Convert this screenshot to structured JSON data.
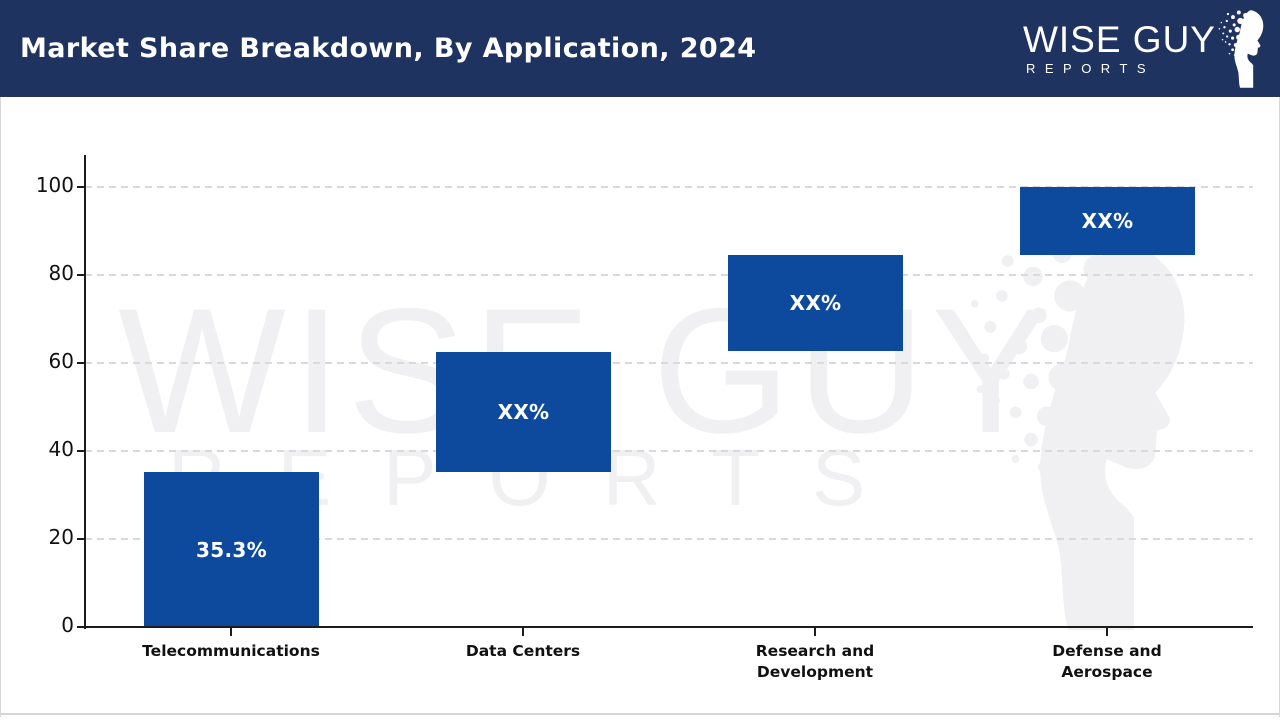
{
  "header": {
    "title": "Market Share Breakdown, By Application, 2024",
    "logo": {
      "line1": "WISE GUY",
      "line2": "REPORTS"
    }
  },
  "watermark": {
    "line1": "WISE GUY",
    "line2": "REPORTS"
  },
  "colors": {
    "header_bg": "#1f3360",
    "header_text": "#ffffff",
    "bar": "#0d4a9e",
    "bar_label": "#ffffff",
    "axis": "#1c1c1c",
    "tick_text": "#111111",
    "grid": "#d9d9d9",
    "watermark": "#f0f0f2",
    "page_border": "#d6d6d6"
  },
  "chart_data": {
    "type": "bar",
    "subtype": "waterfall",
    "title": "Market Share Breakdown, By Application, 2024",
    "categories": [
      "Telecommunications",
      "Data Centers",
      "Research and Development",
      "Defense and Aerospace"
    ],
    "category_label_lines": [
      [
        "Telecommunications"
      ],
      [
        "Data Centers"
      ],
      [
        "Research and",
        "Development"
      ],
      [
        "Defense and",
        "Aerospace"
      ]
    ],
    "segments": [
      {
        "category": "Telecommunications",
        "start": 0,
        "end": 35.3,
        "label": "35.3%"
      },
      {
        "category": "Data Centers",
        "start": 35.3,
        "end": 62.6,
        "label": "XX%"
      },
      {
        "category": "Research and Development",
        "start": 62.6,
        "end": 84.5,
        "label": "XX%"
      },
      {
        "category": "Defense and Aerospace",
        "start": 84.5,
        "end": 100,
        "label": "XX%"
      }
    ],
    "xlabel": "",
    "ylabel": "",
    "ylim": [
      0,
      100
    ],
    "yticks": [
      0,
      20,
      40,
      60,
      80,
      100
    ],
    "grid": "dashed-horizontal",
    "legend": "none"
  }
}
